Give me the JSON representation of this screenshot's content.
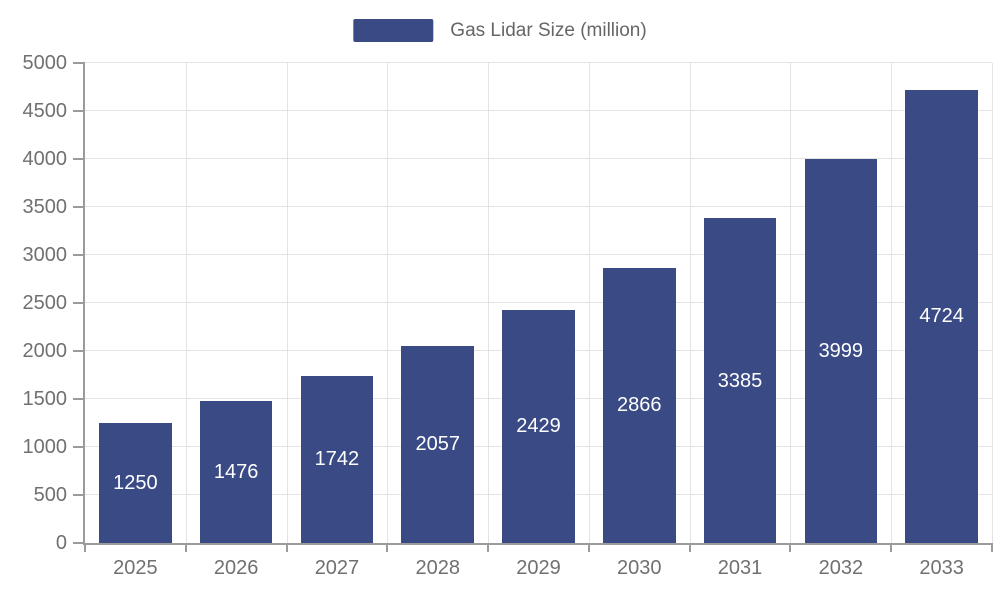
{
  "chart_data": {
    "type": "bar",
    "title": "",
    "legend_label": "Gas Lidar Size (million)",
    "categories": [
      "2025",
      "2026",
      "2027",
      "2028",
      "2029",
      "2030",
      "2031",
      "2032",
      "2033"
    ],
    "values": [
      1250,
      1476,
      1742,
      2057,
      2429,
      2866,
      3385,
      3999,
      4724
    ],
    "xlabel": "",
    "ylabel": "",
    "ylim": [
      0,
      5000
    ],
    "yticks": [
      0,
      500,
      1000,
      1500,
      2000,
      2500,
      3000,
      3500,
      4000,
      4500,
      5000
    ],
    "grid": true,
    "legend_position": "top-center",
    "bar_label_position": "inside-center"
  },
  "style": {
    "bar_color": "#3A4A85",
    "bar_label_color": "#FFFFFF",
    "axis_line_color": "#9B9B9B",
    "grid_line_color": "#E3E3E3",
    "tick_label_color": "#707070",
    "legend_text_color": "#666666",
    "background": "#FFFFFF"
  }
}
